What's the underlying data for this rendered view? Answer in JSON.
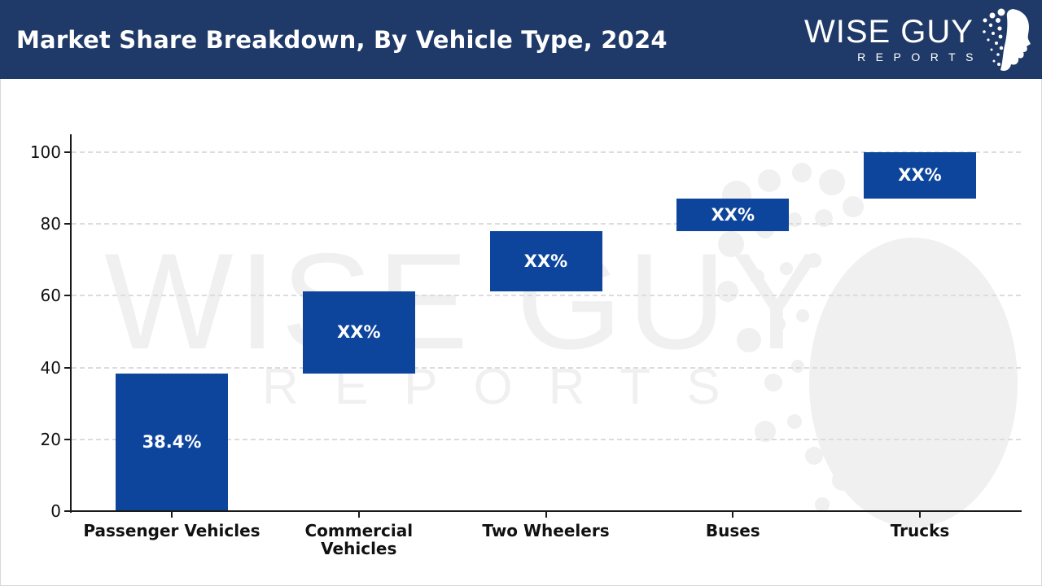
{
  "header": {
    "title": "Market Share Breakdown, By Vehicle Type, 2024",
    "logo": {
      "line1": "WISE GUY",
      "line2": "REPORTS"
    }
  },
  "watermark": {
    "line1": "WISE GUY",
    "line2": "REPORTS"
  },
  "colors": {
    "header_bg": "#1f3a68",
    "bar": "#0d459c",
    "bar_label": "#ffffff",
    "gridline": "#dcdcdc",
    "axis": "#1a1a1a",
    "watermark": "#f0f0f1"
  },
  "chart_data": {
    "type": "bar",
    "subtype": "waterfall",
    "title": "Market Share Breakdown, By Vehicle Type, 2024",
    "xlabel": "",
    "ylabel": "",
    "ylim": [
      0,
      100
    ],
    "yticks": [
      0,
      20,
      40,
      60,
      80,
      100
    ],
    "grid": "horizontal-dashed",
    "legend": "none",
    "categories": [
      "Passenger Vehicles",
      "Commercial\nVehicles",
      "Two Wheelers",
      "Buses",
      "Trucks"
    ],
    "segments": [
      {
        "category": "Passenger Vehicles",
        "start": 0,
        "end": 38.4,
        "value": 38.4,
        "label": "38.4%"
      },
      {
        "category": "Commercial Vehicles",
        "start": 38.4,
        "end": 61.2,
        "value": 22.8,
        "label": "XX%"
      },
      {
        "category": "Two Wheelers",
        "start": 61.2,
        "end": 78.0,
        "value": 16.8,
        "label": "XX%"
      },
      {
        "category": "Buses",
        "start": 78.0,
        "end": 87.1,
        "value": 9.1,
        "label": "XX%"
      },
      {
        "category": "Trucks",
        "start": 87.1,
        "end": 100.0,
        "value": 12.9,
        "label": "XX%"
      }
    ]
  }
}
